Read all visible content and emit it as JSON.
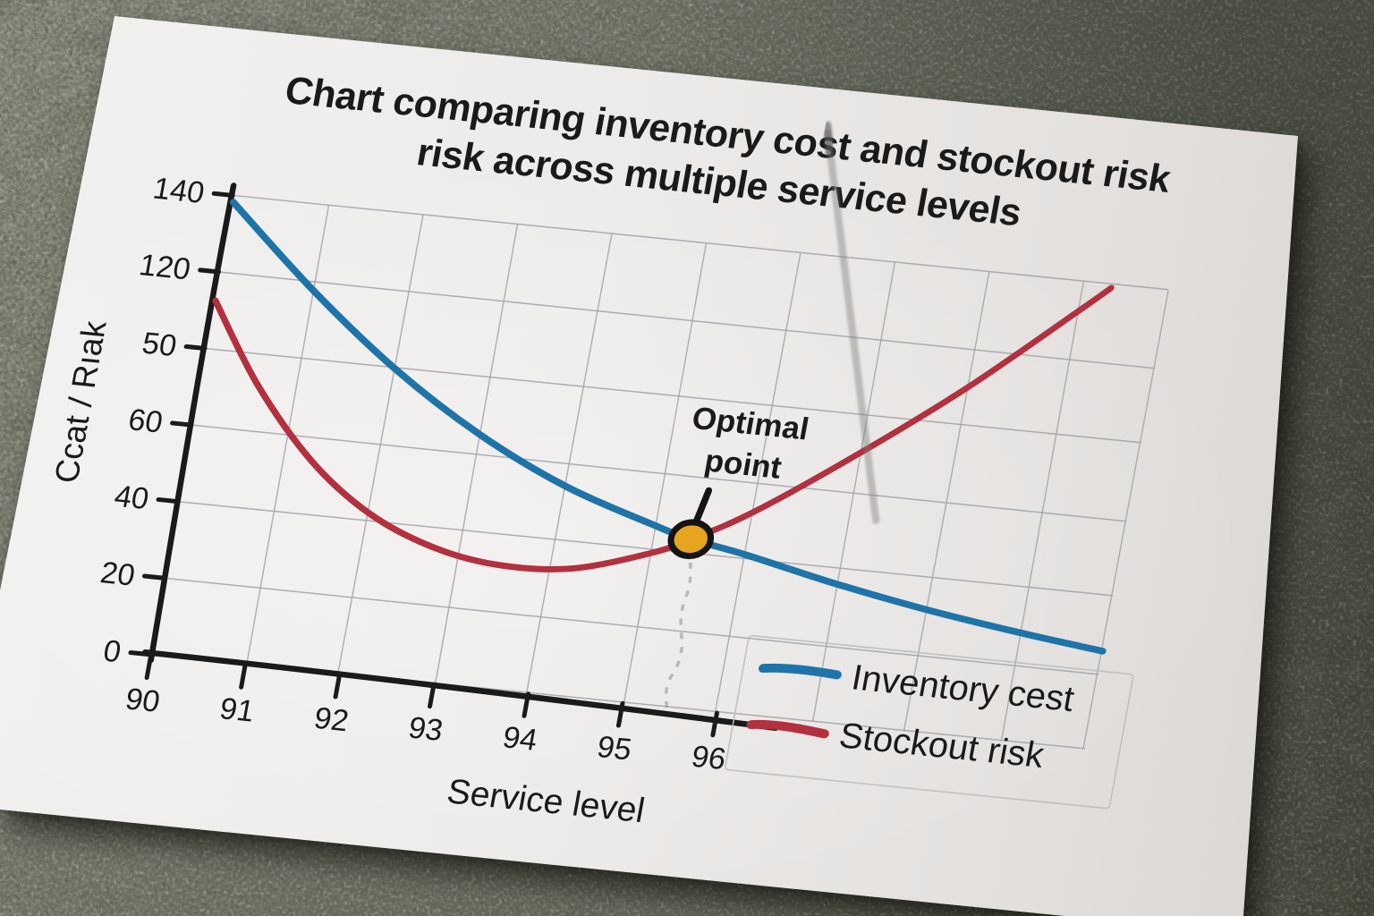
{
  "title": {
    "line1": "Chart comparing inventory cost and stockout risk",
    "line2": "risk across multiple service levels"
  },
  "y_axis": {
    "label": "Ccat / Rıak",
    "tick_labels": [
      "140",
      "120",
      "50",
      "60",
      "40",
      "20",
      "0"
    ]
  },
  "x_axis": {
    "label": "Service level",
    "tick_labels": [
      "90",
      "91",
      "92",
      "93",
      "94",
      "95",
      "96"
    ]
  },
  "legend": {
    "items": [
      {
        "label": "Inventory cest",
        "color": "#1e74a8"
      },
      {
        "label": "Stockout risk",
        "color": "#b3303e"
      }
    ]
  },
  "annotation": {
    "line1": "Optimal",
    "line2": "point",
    "marker_color": "#e6a51f",
    "marker_outline": "#141414"
  },
  "colors": {
    "ink": "#1a1a1a",
    "grid": "#a0a0a8",
    "paper": "#edebe9",
    "granite": "#6f7266",
    "legend_box": "#bdbcba",
    "artifact_gray": "#7a7a7a"
  },
  "chart_data": {
    "type": "line",
    "title": "Chart comparing inventory cost and stockout risk / risk across multiple service levels",
    "xlabel": "Service level",
    "ylabel": "Ccat / Rıak",
    "x_range": [
      90,
      99.9
    ],
    "y_range": [
      0,
      140
    ],
    "x_tick_values": [
      90,
      91,
      92,
      93,
      94,
      95,
      96
    ],
    "y_tick_labels_printed": [
      "140",
      "120",
      "50",
      "60",
      "40",
      "20",
      "0"
    ],
    "grid": true,
    "legend_position": "lower right",
    "series": [
      {
        "name": "Inventory cest",
        "color": "#1e74a8",
        "points": [
          [
            90,
            138
          ],
          [
            91,
            114
          ],
          [
            92,
            93
          ],
          [
            93,
            76
          ],
          [
            94,
            63
          ],
          [
            95,
            54
          ],
          [
            95.4,
            51
          ],
          [
            96,
            48
          ],
          [
            97,
            42
          ],
          [
            98,
            37
          ],
          [
            99,
            33
          ],
          [
            99.9,
            30
          ]
        ]
      },
      {
        "name": "Stockout risk",
        "color": "#b3303e",
        "points": [
          [
            90,
            108
          ],
          [
            90.6,
            84
          ],
          [
            91.3,
            63
          ],
          [
            92,
            49
          ],
          [
            92.7,
            41
          ],
          [
            93.4,
            37.5
          ],
          [
            94.2,
            38.5
          ],
          [
            95,
            45.5
          ],
          [
            95.4,
            51
          ],
          [
            96,
            61
          ],
          [
            97,
            82
          ],
          [
            98,
            105
          ],
          [
            99,
            131
          ],
          [
            99.3,
            139
          ]
        ]
      }
    ],
    "optimal_point": {
      "x": 95.4,
      "y": 51
    }
  }
}
